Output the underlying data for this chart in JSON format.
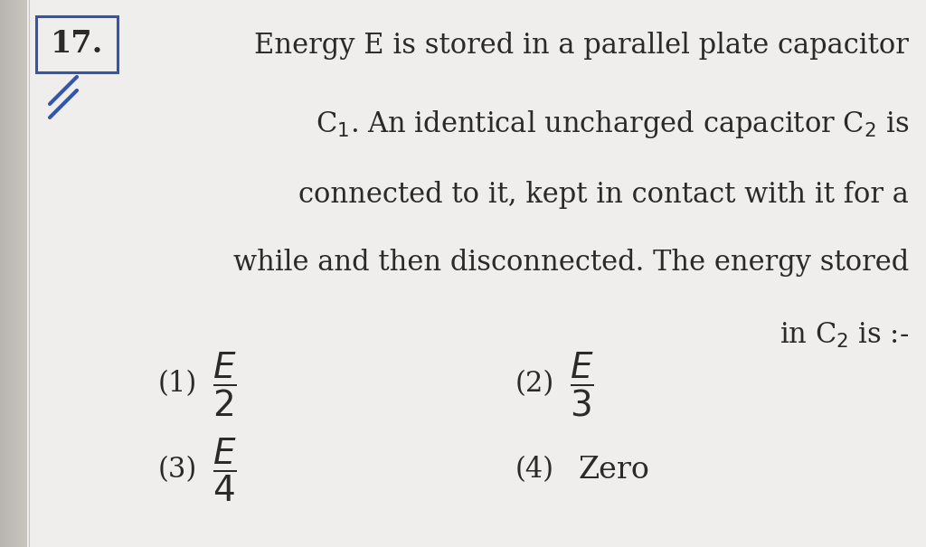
{
  "background_color": "#f0eeec",
  "left_bg_color": "#c8c4be",
  "text_color": "#2a2a2a",
  "question_number": "17.",
  "box_color": "#3355aa",
  "slash_color": "#3355aa",
  "main_text_lines": [
    "Energy E is stored in a parallel plate capacitor",
    "C$_1$. An identical uncharged capacitor C$_2$ is",
    "connected to it, kept in contact with it for a",
    "while and then disconnected. The energy stored",
    "in C$_2$ is :-"
  ],
  "options": [
    {
      "num": "(1)",
      "expr": "$\\dfrac{E}{2}$"
    },
    {
      "num": "(2)",
      "expr": "$\\dfrac{E}{3}$"
    },
    {
      "num": "(3)",
      "expr": "$\\dfrac{E}{4}$"
    },
    {
      "num": "(4)",
      "expr": "Zero"
    }
  ],
  "font_size_main": 22,
  "font_size_options": 22,
  "font_size_number": 24
}
